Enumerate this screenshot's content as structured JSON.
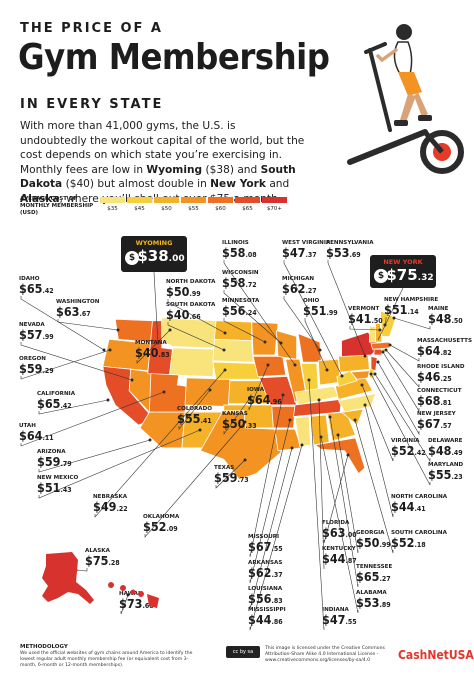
{
  "header": {
    "kicker_top": "THE PRICE OF A",
    "title": "Gym Membership",
    "kicker_bottom": "IN EVERY STATE"
  },
  "intro": {
    "p1": "With more than 41,000 gyms, the U.S. is undoubtedly the workout capital of the world, but the cost depends on which state you’re exercising in. Monthly fees are low in ",
    "wy": "Wyoming",
    "p2": " ($38) and ",
    "sd": "South Dakota",
    "p3": " ($40) but almost double in ",
    "ny": "New York",
    "p4": " and ",
    "ak": "Alaska",
    "p5": ", where you’ll shell out over $75 a month."
  },
  "legend": {
    "title": "AVERAGE COST OF MONTHLY MEMBERSHIP (USD)",
    "bins": [
      {
        "label": "$35",
        "color": "#f9e37b"
      },
      {
        "label": "$45",
        "color": "#f7cf3d"
      },
      {
        "label": "$50",
        "color": "#f5b229"
      },
      {
        "label": "$55",
        "color": "#f39322"
      },
      {
        "label": "$60",
        "color": "#ee7021"
      },
      {
        "label": "$65",
        "color": "#e54d28"
      },
      {
        "label": "$70+",
        "color": "#d7322e"
      }
    ]
  },
  "chart_data": {
    "type": "choropleth",
    "title": "The Price of a Gym Membership in Every State",
    "value_label": "Average cost of monthly membership (USD)",
    "states": [
      {
        "name": "WYOMING",
        "dollars": "$38",
        "cents": ".00",
        "value": 38.0
      },
      {
        "name": "NEW YORK",
        "dollars": "$75",
        "cents": ".32",
        "value": 75.32
      },
      {
        "name": "IDAHO",
        "dollars": "$65",
        "cents": ".42",
        "value": 65.42
      },
      {
        "name": "WASHINGTON",
        "dollars": "$63",
        "cents": ".67",
        "value": 63.67
      },
      {
        "name": "NEVADA",
        "dollars": "$57",
        "cents": ".99",
        "value": 57.99
      },
      {
        "name": "OREGON",
        "dollars": "$59",
        "cents": ".29",
        "value": 59.29
      },
      {
        "name": "CALIFORNIA",
        "dollars": "$65",
        "cents": ".42",
        "value": 65.42
      },
      {
        "name": "UTAH",
        "dollars": "$64",
        "cents": ".11",
        "value": 64.11
      },
      {
        "name": "ARIZONA",
        "dollars": "$59",
        "cents": ".79",
        "value": 59.79
      },
      {
        "name": "NEW MEXICO",
        "dollars": "$51",
        "cents": ".43",
        "value": 51.43
      },
      {
        "name": "ILLINOIS",
        "dollars": "$58",
        "cents": ".08",
        "value": 58.08
      },
      {
        "name": "WEST VIRGINIA",
        "dollars": "$47",
        "cents": ".37",
        "value": 47.37
      },
      {
        "name": "PENNSYLVANIA",
        "dollars": "$53",
        "cents": ".69",
        "value": 53.69
      },
      {
        "name": "NORTH DAKOTA",
        "dollars": "$50",
        "cents": ".99",
        "value": 50.99
      },
      {
        "name": "WISCONSIN",
        "dollars": "$58",
        "cents": ".72",
        "value": 58.72
      },
      {
        "name": "MICHIGAN",
        "dollars": "$62",
        "cents": ".27",
        "value": 62.27
      },
      {
        "name": "SOUTH DAKOTA",
        "dollars": "$40",
        "cents": ".66",
        "value": 40.66
      },
      {
        "name": "MINNESOTA",
        "dollars": "$56",
        "cents": ".24",
        "value": 56.24
      },
      {
        "name": "OHIO",
        "dollars": "$51",
        "cents": ".99",
        "value": 51.99
      },
      {
        "name": "VERMONT",
        "dollars": "$41",
        "cents": ".50",
        "value": 41.5
      },
      {
        "name": "NEW HAMPSHIRE",
        "dollars": "$51",
        "cents": ".14",
        "value": 51.14
      },
      {
        "name": "MAINE",
        "dollars": "$48",
        "cents": ".50",
        "value": 48.5
      },
      {
        "name": "MASSACHUSETTS",
        "dollars": "$64",
        "cents": ".82",
        "value": 64.82
      },
      {
        "name": "RHODE ISLAND",
        "dollars": "$46",
        "cents": ".25",
        "value": 46.25
      },
      {
        "name": "CONNECTICUT",
        "dollars": "$68",
        "cents": ".81",
        "value": 68.81
      },
      {
        "name": "NEW JERSEY",
        "dollars": "$67",
        "cents": ".57",
        "value": 67.57
      },
      {
        "name": "DELAWARE",
        "dollars": "$48",
        "cents": ".49",
        "value": 48.49
      },
      {
        "name": "MARYLAND",
        "dollars": "$55",
        "cents": ".23",
        "value": 55.23
      },
      {
        "name": "VIRGINIA",
        "dollars": "$52",
        "cents": ".42",
        "value": 52.42
      },
      {
        "name": "NORTH CAROLINA",
        "dollars": "$44",
        "cents": ".41",
        "value": 44.41
      },
      {
        "name": "SOUTH CAROLINA",
        "dollars": "$52",
        "cents": ".18",
        "value": 52.18
      },
      {
        "name": "MONTANA",
        "dollars": "$40",
        "cents": ".83",
        "value": 40.83
      },
      {
        "name": "IOWA",
        "dollars": "$64",
        "cents": ".96",
        "value": 64.96
      },
      {
        "name": "COLORADO",
        "dollars": "$55",
        "cents": ".41",
        "value": 55.41
      },
      {
        "name": "KANSAS",
        "dollars": "$50",
        "cents": ".33",
        "value": 50.33
      },
      {
        "name": "TEXAS",
        "dollars": "$59",
        "cents": ".73",
        "value": 59.73
      },
      {
        "name": "NEBRASKA",
        "dollars": "$49",
        "cents": ".22",
        "value": 49.22
      },
      {
        "name": "OKLAHOMA",
        "dollars": "$52",
        "cents": ".09",
        "value": 52.09
      },
      {
        "name": "MISSOURI",
        "dollars": "$67",
        "cents": ".55",
        "value": 67.55
      },
      {
        "name": "ARKANSAS",
        "dollars": "$62",
        "cents": ".37",
        "value": 62.37
      },
      {
        "name": "LOUISIANA",
        "dollars": "$56",
        "cents": ".83",
        "value": 56.83
      },
      {
        "name": "MISSISSIPPI",
        "dollars": "$44",
        "cents": ".86",
        "value": 44.86
      },
      {
        "name": "INDIANA",
        "dollars": "$47",
        "cents": ".55",
        "value": 47.55
      },
      {
        "name": "ALABAMA",
        "dollars": "$53",
        "cents": ".89",
        "value": 53.89
      },
      {
        "name": "TENNESSEE",
        "dollars": "$65",
        "cents": ".27",
        "value": 65.27
      },
      {
        "name": "KENTUCKY",
        "dollars": "$44",
        "cents": ".87",
        "value": 44.87
      },
      {
        "name": "FLORIDA",
        "dollars": "$63",
        "cents": ".00",
        "value": 63.0
      },
      {
        "name": "GEORGIA",
        "dollars": "$50",
        "cents": ".99",
        "value": 50.99
      },
      {
        "name": "ALASKA",
        "dollars": "$75",
        "cents": ".28",
        "value": 75.28
      },
      {
        "name": "HAWAII",
        "dollars": "$73",
        "cents": ".68",
        "value": 73.68
      }
    ]
  },
  "footer": {
    "methodology_title": "METHODOLOGY",
    "methodology_text": "We used the official websites of gym chains around America to identify the lowest regular adult monthly membership fee (or equivalent cost from 3-month, 6-month or 12-month memberships).",
    "license_text": "This image is licensed under the Creative Commons Attribution-Share Alike 4.0 International License - www.creativecommons.org/licenses/by-sa/4.0",
    "cc_badge": "cc by sa",
    "brand": "CashNetUSA"
  }
}
